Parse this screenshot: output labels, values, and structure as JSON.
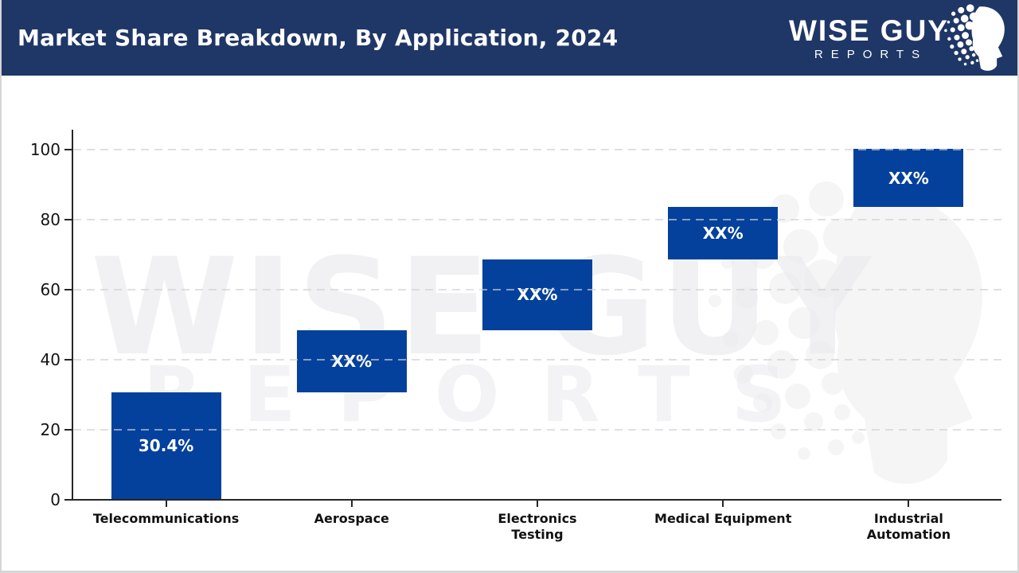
{
  "header": {
    "title": "Market Share Breakdown, By Application, 2024",
    "navy_color": "#1f3767",
    "logo": {
      "line1": "WISE GUY",
      "line2": "REPORTS"
    }
  },
  "watermark": {
    "line1": "WISE GUY",
    "line2": "REPORTS"
  },
  "chart_data": {
    "type": "bar",
    "subtype": "waterfall",
    "title": "Market Share Breakdown, By Application, 2024",
    "categories": [
      "Telecommunications",
      "Aerospace",
      "Electronics\nTesting",
      "Medical Equipment",
      "Industrial\nAutomation"
    ],
    "segments": [
      {
        "category": "Telecommunications",
        "start": 0,
        "end": 30.4,
        "label": "30.4%"
      },
      {
        "category": "Aerospace",
        "start": 30.4,
        "end": 48.2,
        "label": "XX%"
      },
      {
        "category": "Electronics Testing",
        "start": 48.2,
        "end": 68.4,
        "label": "XX%"
      },
      {
        "category": "Medical Equipment",
        "start": 68.4,
        "end": 83.3,
        "label": "XX%"
      },
      {
        "category": "Industrial Automation",
        "start": 83.3,
        "end": 100,
        "label": "XX%"
      }
    ],
    "xlabel": "",
    "ylabel": "",
    "ylim": [
      0,
      100
    ],
    "yticks": [
      0,
      20,
      40,
      60,
      80,
      100
    ],
    "grid": true,
    "grid_style": "dashed",
    "legend": "none",
    "bar_color": "#04419c",
    "bar_label_color": "#ffffff"
  }
}
